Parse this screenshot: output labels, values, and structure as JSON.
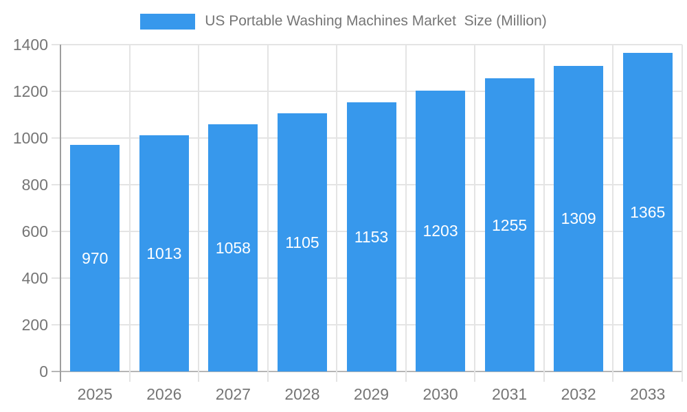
{
  "legend": {
    "label": "US Portable Washing Machines Market  Size (Million)"
  },
  "chart_data": {
    "type": "bar",
    "title": "US Portable Washing Machines Market  Size (Million)",
    "categories": [
      "2025",
      "2026",
      "2027",
      "2028",
      "2029",
      "2030",
      "2031",
      "2032",
      "2033"
    ],
    "values": [
      970,
      1013,
      1058,
      1105,
      1153,
      1203,
      1255,
      1309,
      1365
    ],
    "series": [
      {
        "name": "US Portable Washing Machines Market  Size (Million)",
        "values": [
          970,
          1013,
          1058,
          1105,
          1153,
          1203,
          1255,
          1309,
          1365
        ]
      }
    ],
    "xlabel": "",
    "ylabel": "",
    "ylim": [
      0,
      1400
    ],
    "yticks": [
      0,
      200,
      400,
      600,
      800,
      1000,
      1200,
      1400
    ],
    "grid": true,
    "legend_position": "top",
    "value_labels": "inside-center",
    "colors": {
      "bar": "#3798EC",
      "value_label": "#ffffff",
      "axis_text": "#757575",
      "gridline": "#e4e4e4",
      "y_axis_line": "#9e9e9e",
      "x_axis_line": "#b5b5b5"
    }
  }
}
